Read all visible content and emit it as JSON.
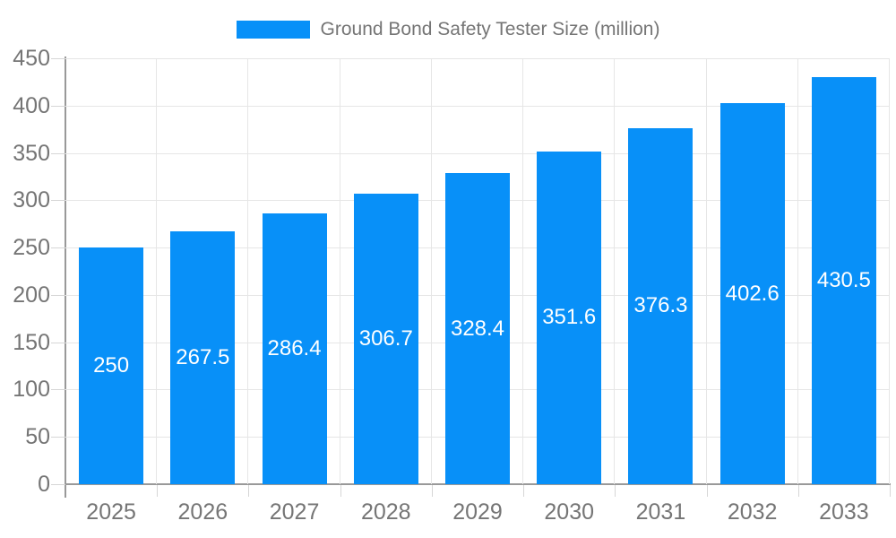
{
  "chart_data": {
    "type": "bar",
    "title": "Ground Bond Safety Tester Size (million)",
    "categories": [
      "2025",
      "2026",
      "2027",
      "2028",
      "2029",
      "2030",
      "2031",
      "2032",
      "2033"
    ],
    "values": [
      250,
      267.5,
      286.4,
      306.7,
      328.4,
      351.6,
      376.3,
      402.6,
      430.5
    ],
    "value_labels": [
      "250",
      "267.5",
      "286.4",
      "306.7",
      "328.4",
      "351.6",
      "376.3",
      "402.6",
      "430.5"
    ],
    "series_name": "Ground Bond Safety Tester Size (million)",
    "xlabel": "",
    "ylabel": "",
    "ylim": [
      0,
      450
    ],
    "yticks": [
      0,
      50,
      100,
      150,
      200,
      250,
      300,
      350,
      400,
      450
    ],
    "grid": true,
    "legend_position": "top-center",
    "colors": {
      "bar": "#0890f8",
      "bar_label_text": "#ffffff",
      "axis_line": "#999999",
      "grid_line": "#e6e6e6",
      "tick_mark": "#d6d6d6",
      "axis_text": "#757575",
      "background": "#ffffff"
    }
  }
}
